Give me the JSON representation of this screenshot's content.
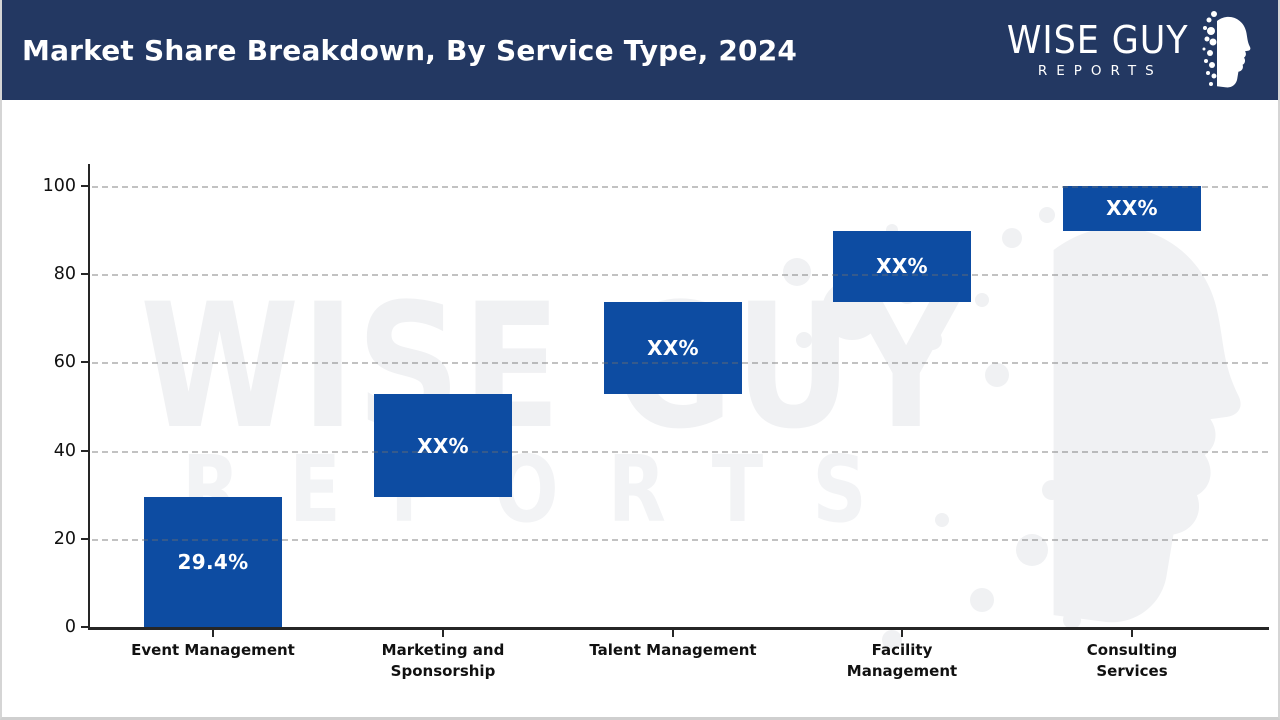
{
  "header": {
    "title": "Market Share Breakdown, By Service Type, 2024",
    "logo": {
      "brand_line1": "WISE GUY",
      "brand_line2": "REPORTS"
    }
  },
  "watermark": {
    "line1": "WISE GUY",
    "line2": "REPORTS"
  },
  "colors": {
    "header_bg": "#233862",
    "bar_blue": "#0d4ca2",
    "bar_label": "#ffffff",
    "watermark_gray": "#f0f1f3",
    "axis": "#262626"
  },
  "chart_data": {
    "type": "bar",
    "subtype": "waterfall",
    "title": "Market Share Breakdown, By Service Type, 2024",
    "categories": [
      [
        "Event Management"
      ],
      [
        "Marketing and",
        "Sponsorship"
      ],
      [
        "Talent Management"
      ],
      [
        "Facility",
        "Management"
      ],
      [
        "Consulting",
        "Services"
      ]
    ],
    "segments": [
      {
        "name": "Event Management",
        "start": 0,
        "end": 29.4,
        "label": "29.4%"
      },
      {
        "name": "Marketing and Sponsorship",
        "start": 29.4,
        "end": 52.8,
        "label": "XX%"
      },
      {
        "name": "Talent Management",
        "start": 52.8,
        "end": 73.7,
        "label": "XX%"
      },
      {
        "name": "Facility Management",
        "start": 73.7,
        "end": 89.8,
        "label": "XX%"
      },
      {
        "name": "Consulting Services",
        "start": 89.8,
        "end": 100,
        "label": "XX%"
      }
    ],
    "y_ticks": [
      0,
      20,
      40,
      60,
      80,
      100
    ],
    "ylim": [
      0,
      105
    ],
    "xlabel": "",
    "ylabel": "",
    "grid": "horizontal-dashed",
    "legend": "none",
    "bar_color": "#0d4ca2"
  }
}
